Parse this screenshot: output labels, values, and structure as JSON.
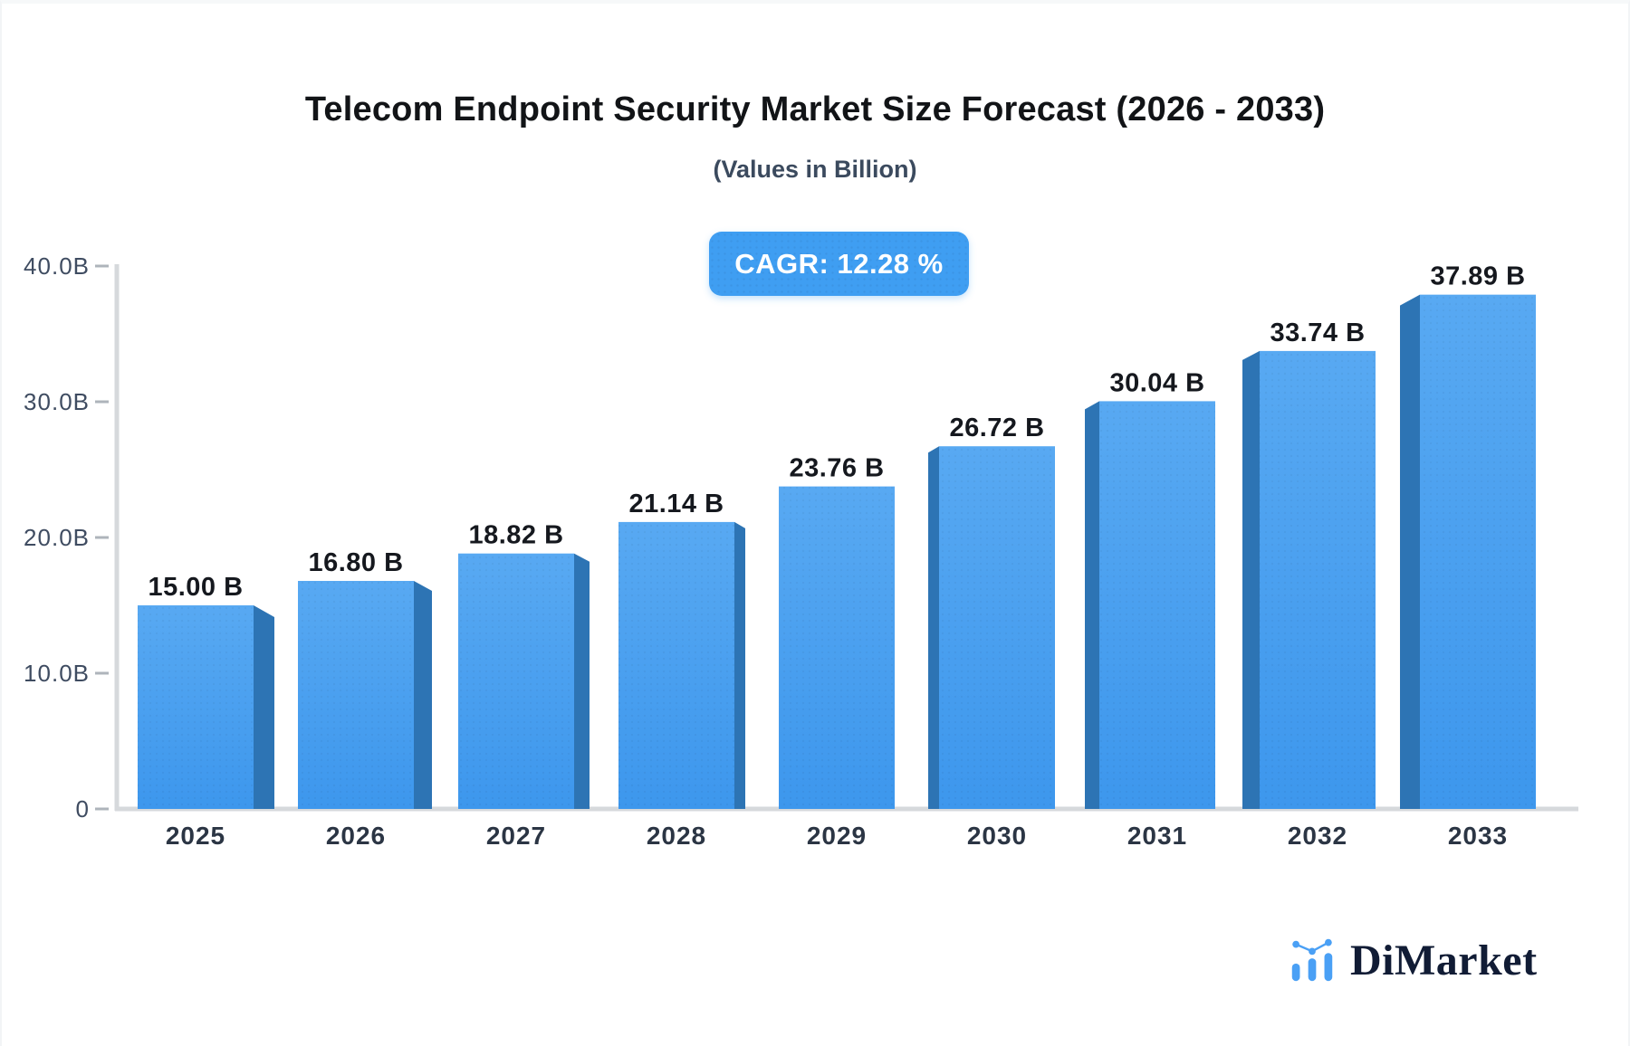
{
  "header": {
    "title": "Telecom Endpoint Security Market Size Forecast (2026 - 2033)",
    "subtitle": "(Values in Billion)"
  },
  "badge": {
    "label": "CAGR: 12.28 %",
    "background_color": "#3f9ef2",
    "text_color": "#ffffff"
  },
  "chart_data": {
    "type": "bar",
    "title": "Telecom Endpoint Security Market Size Forecast (2026 - 2033)",
    "subtitle": "(Values in Billion)",
    "xlabel": "",
    "ylabel": "",
    "categories": [
      "2025",
      "2026",
      "2027",
      "2028",
      "2029",
      "2030",
      "2031",
      "2032",
      "2033"
    ],
    "values": [
      15.0,
      16.8,
      18.82,
      21.14,
      23.76,
      26.72,
      30.04,
      33.74,
      37.89
    ],
    "value_labels": [
      "15.00 B",
      "16.80 B",
      "18.82 B",
      "21.14 B",
      "23.76 B",
      "26.72 B",
      "30.04 B",
      "33.74 B",
      "37.89 B"
    ],
    "unit": "Billion",
    "ylim": [
      0,
      40
    ],
    "y_ticks": [
      {
        "value": 0,
        "label": "0"
      },
      {
        "value": 10,
        "label": "10.0B"
      },
      {
        "value": 20,
        "label": "20.0B"
      },
      {
        "value": 30,
        "label": "30.0B"
      },
      {
        "value": 40,
        "label": "40.0B"
      }
    ],
    "grid": false,
    "legend": false,
    "bar_style": "3d-beveled",
    "bar_color_top": "#58a9f2",
    "bar_color_bottom": "#3d97ed",
    "bar_side_color": "#2d74b4",
    "axis_line_color": "#d6d9dc",
    "tick_mark_color": "#aeb4bb",
    "y_label_color": "#3f4c61",
    "value_label_color": "#15181e",
    "category_label_color": "#2b3544"
  },
  "logo": {
    "text": "DiMarket",
    "icon": "bar-chart-logo-icon",
    "icon_color": "#4aa0f5",
    "text_color": "#111c35"
  }
}
